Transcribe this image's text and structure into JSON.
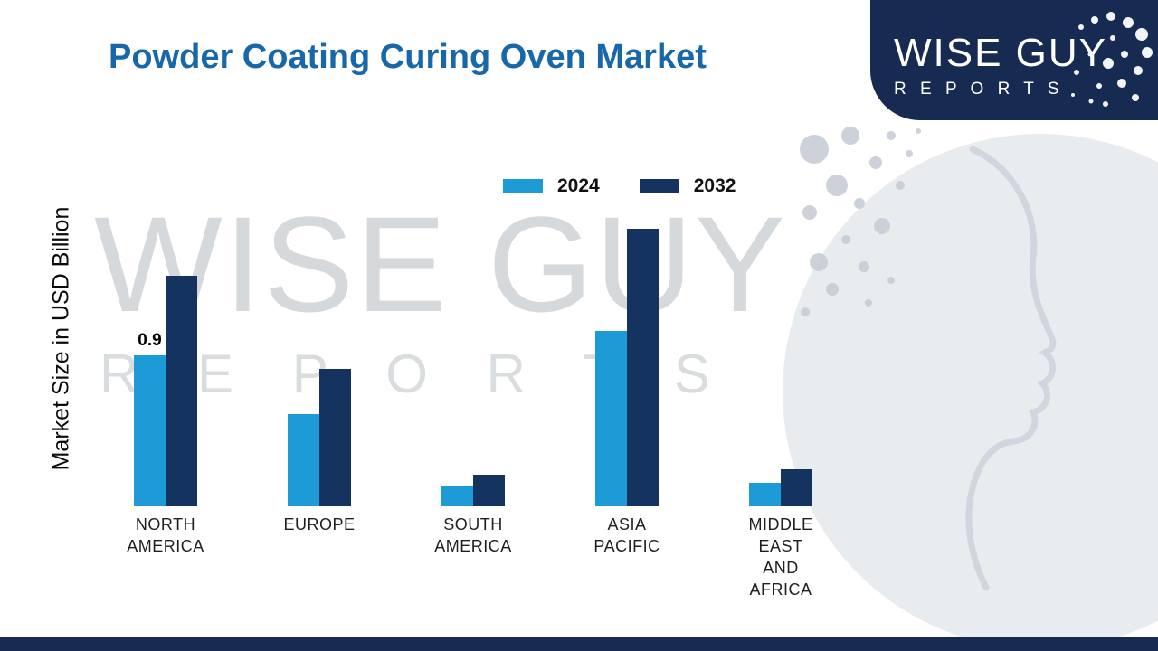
{
  "page": {
    "title": "Powder Coating Curing Oven Market"
  },
  "brand": {
    "logo_line1": "WISE GUY",
    "logo_line2": "R E P O R T S"
  },
  "watermark": {
    "line1": "WISE GUY",
    "line2": "R E P O R T S"
  },
  "chart_data": {
    "type": "bar",
    "title": "Powder Coating Curing Oven Market",
    "xlabel": "",
    "ylabel": "Market Size in USD Billion",
    "units": "USD Billion",
    "categories": [
      "NORTH AMERICA",
      "EUROPE",
      "SOUTH AMERICA",
      "ASIA PACIFIC",
      "MIDDLE EAST AND AFRICA"
    ],
    "series": [
      {
        "name": "2024",
        "color": "#1d9bd7",
        "values": [
          0.9,
          0.55,
          0.12,
          1.05,
          0.14
        ]
      },
      {
        "name": "2032",
        "color": "#14335f",
        "values": [
          1.38,
          0.82,
          0.19,
          1.66,
          0.22
        ]
      }
    ],
    "bar_labels": [
      {
        "series_index": 0,
        "category_index": 0,
        "text": "0.9"
      }
    ],
    "ylim": [
      0,
      1.8
    ],
    "grid": false,
    "legend_position": "top"
  },
  "colors": {
    "title_blue": "#1767a9",
    "series_2024": "#1d9bd7",
    "series_2032": "#14335f",
    "navy_block": "#172b52",
    "watermark_gray": "#d6d9dc",
    "bg_circle_gray": "#e9ecef"
  }
}
